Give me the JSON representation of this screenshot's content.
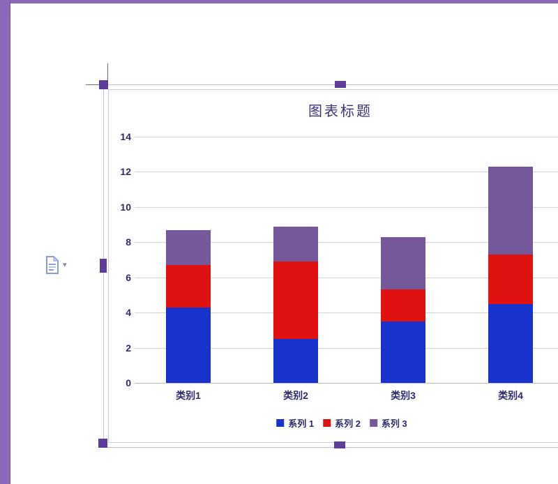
{
  "app": {
    "canvas_bg": "#FFFFFF",
    "left_strip_color": "#8C68BA",
    "strip_edge_color": "#7B53A8"
  },
  "selection": {
    "frame_color": "#C7BCE2",
    "handle_color": "#5E3C9C",
    "crosshair_color": "#6F6A88"
  },
  "layout_button": {
    "icon": "layout-options-icon",
    "caret": "▾"
  },
  "chart_data": {
    "type": "bar",
    "stacked": true,
    "title": "图表标题",
    "categories": [
      "类别1",
      "类别2",
      "类别3",
      "类别4"
    ],
    "series": [
      {
        "name": "系列 1",
        "color": "#1733CC",
        "values": [
          4.3,
          2.5,
          3.5,
          4.5
        ]
      },
      {
        "name": "系列 2",
        "color": "#E01111",
        "values": [
          2.4,
          4.4,
          1.8,
          2.8
        ]
      },
      {
        "name": "系列 3",
        "color": "#74589A",
        "values": [
          2.0,
          2.0,
          3.0,
          5.0
        ]
      }
    ],
    "y_ticks": [
      0,
      2,
      4,
      6,
      8,
      10,
      12,
      14
    ],
    "ylim": [
      0,
      14
    ],
    "grid": true,
    "legend_position": "bottom",
    "text_color": "#2E2A6E",
    "title_color": "#3C3382",
    "gridline_color": "#D6D2E0",
    "axis_line_color": "#BDB6CF"
  }
}
